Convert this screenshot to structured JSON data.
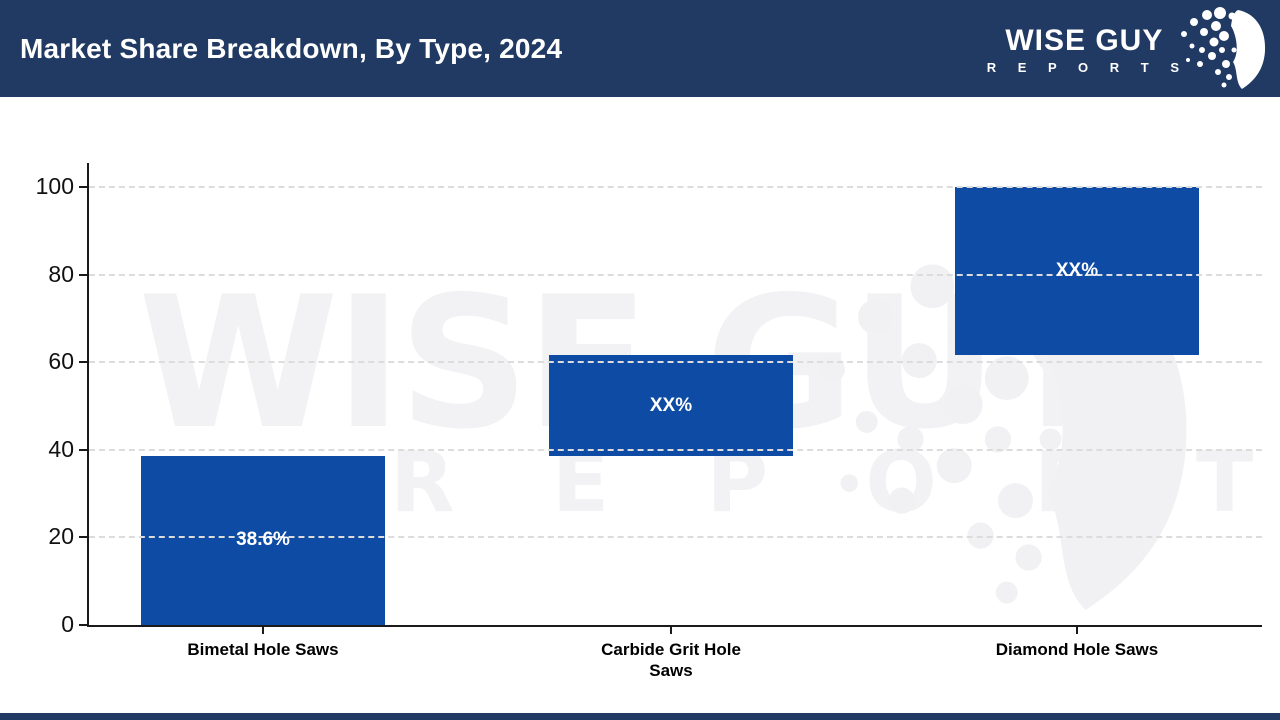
{
  "header": {
    "title": "Market Share Breakdown, By Type, 2024",
    "logo": {
      "line1": "WISE GUY",
      "line2": "R E P O R T S",
      "head_icon": "dotted-face-profile"
    }
  },
  "watermark": {
    "line1": "WISE GUY",
    "line2": "R E P O R T S",
    "head_icon": "dotted-face-profile"
  },
  "colors": {
    "header_bg": "#203a63",
    "bar_fill": "#0d4ba4",
    "bar_label_text": "#ffffff",
    "grid_line": "#dcdcdc",
    "axis_line": "#1a1a1a",
    "watermark": "#f2f2f4",
    "title_text": "#ffffff",
    "background": "#ffffff"
  },
  "chart_data": {
    "type": "bar",
    "subtype": "waterfall",
    "title": "Market Share Breakdown, By Type, 2024",
    "xlabel": "",
    "ylabel": "",
    "ylim": [
      0,
      100
    ],
    "yticks": [
      0,
      20,
      40,
      60,
      80,
      100
    ],
    "grid": "horizontal-dashed",
    "legend": "none",
    "categories": [
      "Bimetal Hole Saws",
      "Carbide Grit Hole Saws",
      "Diamond Hole Saws"
    ],
    "category_label_lines": [
      [
        "Bimetal Hole Saws"
      ],
      [
        "Carbide Grit Hole",
        "Saws"
      ],
      [
        "Diamond Hole Saws"
      ]
    ],
    "segments": [
      {
        "category": "Bimetal Hole Saws",
        "start": 0,
        "end": 38.6,
        "label": "38.6%"
      },
      {
        "category": "Carbide Grit Hole Saws",
        "start": 38.6,
        "end": 61.6,
        "label": "XX%"
      },
      {
        "category": "Diamond Hole Saws",
        "start": 61.6,
        "end": 100,
        "label": "XX%"
      }
    ]
  }
}
